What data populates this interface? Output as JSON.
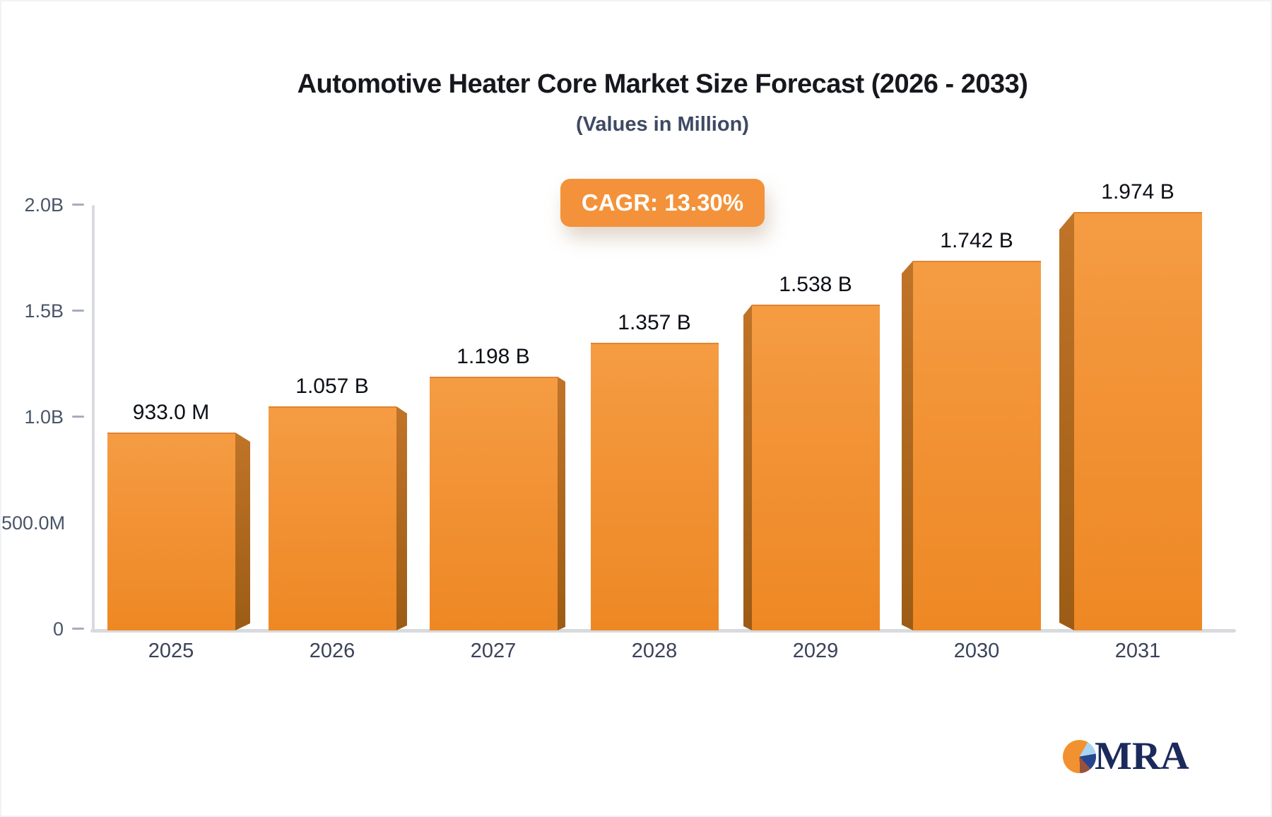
{
  "title": "Automotive Heater Core Market Size Forecast (2026 - 2033)",
  "subtitle": "(Values in Million)",
  "cagr": {
    "label": "CAGR: 13.30%"
  },
  "logo": {
    "text": "MRA",
    "icon": "pie-chart-icon"
  },
  "chart_data": {
    "type": "bar",
    "categories": [
      "2025",
      "2026",
      "2027",
      "2028",
      "2029",
      "2030",
      "2031"
    ],
    "values": [
      0.933,
      1.057,
      1.198,
      1.357,
      1.538,
      1.742,
      1.974
    ],
    "value_labels": [
      "933.0 M",
      "1.057 B",
      "1.198 B",
      "1.357 B",
      "1.538 B",
      "1.742 B",
      "1.974 B"
    ],
    "title": "Automotive Heater Core Market Size Forecast (2026 - 2033)",
    "subtitle": "(Values in Million)",
    "xlabel": "",
    "ylabel": "",
    "ylim": [
      0,
      2.0
    ],
    "grid": false,
    "legend": "none",
    "bar_style": "3d-extruded",
    "yticks": [
      {
        "value": 0.0,
        "label": "0",
        "dash": true
      },
      {
        "value": 0.5,
        "label": "500.0M",
        "dash": false
      },
      {
        "value": 1.0,
        "label": "1.0B",
        "dash": true
      },
      {
        "value": 1.5,
        "label": "1.5B",
        "dash": true
      },
      {
        "value": 2.0,
        "label": "2.0B",
        "dash": true
      }
    ]
  },
  "colors": {
    "title": "#16181d",
    "subtitle": "#3e4a63",
    "badge_bg": "#f3923a",
    "bar_top": "#f59c43",
    "bar_mid": "#f19133",
    "bar_bottom": "#ee8824",
    "bar_edge": "#e08433",
    "side_top": "#c07428",
    "side_bottom": "#9c5c15",
    "axis": "#d8dade",
    "tick": "#a6adbc",
    "ytick_label": "#4a5568",
    "year_label": "#39435a",
    "value_label": "#0c0f16",
    "logo_text": "#1b2a5b",
    "pie": {
      "orange": "#f1912f",
      "light_blue": "#a8d4f2",
      "blue": "#27458c",
      "maroon": "#96523f"
    }
  }
}
